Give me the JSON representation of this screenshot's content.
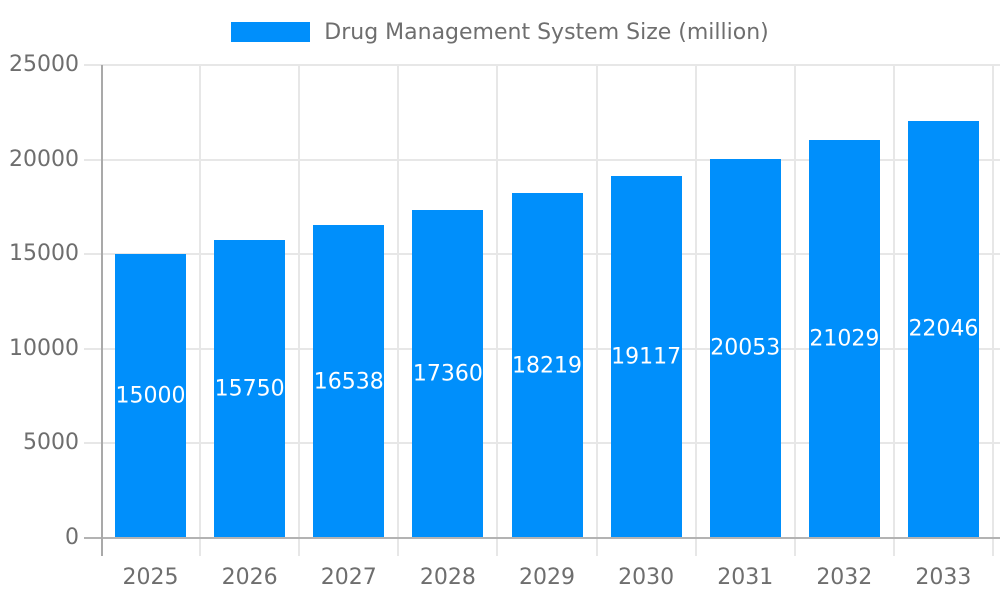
{
  "chart_data": {
    "type": "bar",
    "title": "Drug Management System Size (million)",
    "categories": [
      "2025",
      "2026",
      "2027",
      "2028",
      "2029",
      "2030",
      "2031",
      "2032",
      "2033"
    ],
    "values": [
      15000,
      15750,
      16538,
      17360,
      18219,
      19117,
      20053,
      21029,
      22046
    ],
    "xlabel": "",
    "ylabel": "",
    "ylim": [
      0,
      25000
    ],
    "yticks": [
      0,
      5000,
      10000,
      15000,
      20000,
      25000
    ],
    "grid": true,
    "legend_position": "top-center",
    "bar_color": "#008FFB",
    "value_label_color": "#ffffff",
    "axis_label_color": "#6e6e6e"
  }
}
